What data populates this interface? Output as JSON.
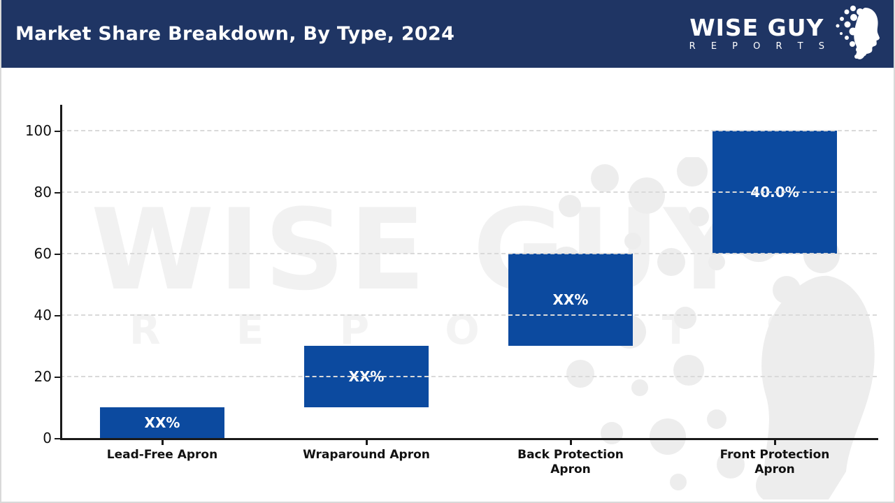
{
  "header": {
    "title": "Market Share Breakdown, By Type, 2024",
    "logo": {
      "primary": "WISE GUY",
      "secondary": "R E P O R T S"
    }
  },
  "watermark": {
    "primary": "WISE GUY",
    "secondary": "R E P O R T S"
  },
  "colors": {
    "header_bg": "#1f3564",
    "bar": "#0c4a9f",
    "bar_label": "#ffffff",
    "axis": "#1a1a1a",
    "grid": "#d9d9d9",
    "watermark": "#f0f0f0"
  },
  "chart_data": {
    "type": "bar",
    "subtype": "waterfall",
    "title": "Market Share Breakdown, By Type, 2024",
    "categories": [
      "Lead-Free Apron",
      "Wraparound Apron",
      "Back Protection\nApron",
      "Front Protection\nApron"
    ],
    "bars": [
      {
        "category": "Lead-Free Apron",
        "start": 0,
        "end": 10,
        "value_label": "XX%"
      },
      {
        "category": "Wraparound Apron",
        "start": 10,
        "end": 30,
        "value_label": "XX%"
      },
      {
        "category": "Back Protection Apron",
        "start": 30,
        "end": 60,
        "value_label": "XX%"
      },
      {
        "category": "Front Protection Apron",
        "start": 60,
        "end": 100,
        "value_label": "40.0%"
      }
    ],
    "ylim": [
      0,
      100
    ],
    "yticks": [
      0,
      20,
      40,
      60,
      80,
      100
    ],
    "xlabel": "",
    "ylabel": "",
    "grid": "horizontal-dashed",
    "legend": "none"
  }
}
